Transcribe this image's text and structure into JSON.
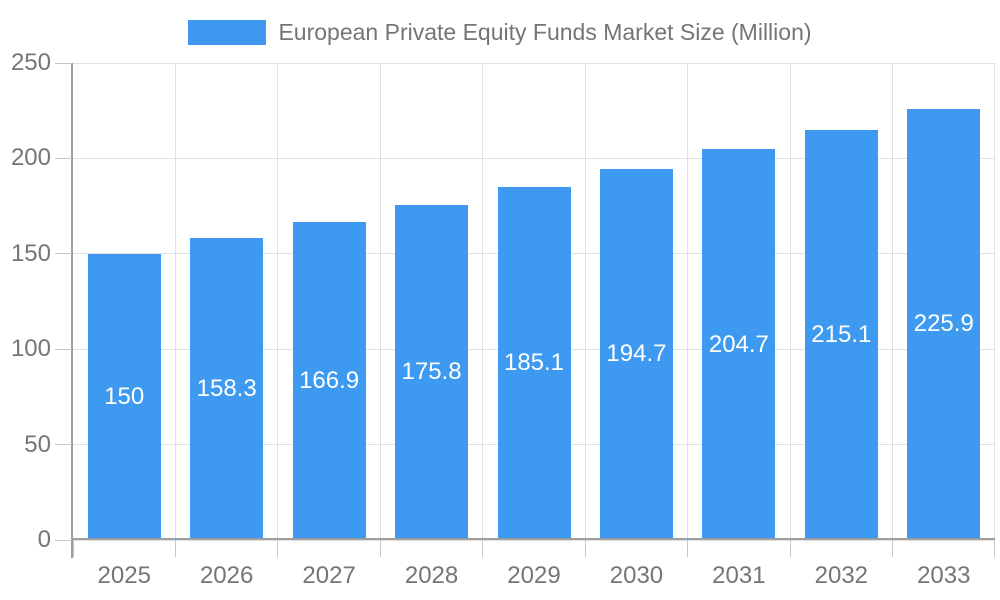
{
  "colors": {
    "bar": "#3d9af0",
    "axis_label": "#757575",
    "grid": "#e0e0e0",
    "axis_line": "#9e9e9e",
    "tick": "#c6c6c6",
    "value_label": "#ffffff",
    "background": "#ffffff"
  },
  "legend": {
    "label": "European Private Equity Funds Market Size (Million)"
  },
  "chart_data": {
    "type": "bar",
    "title": "European Private Equity Funds Market Size (Million)",
    "categories": [
      "2025",
      "2026",
      "2027",
      "2028",
      "2029",
      "2030",
      "2031",
      "2032",
      "2033"
    ],
    "values": [
      150,
      158.3,
      166.9,
      175.8,
      185.1,
      194.7,
      204.7,
      215.1,
      225.9
    ],
    "xlabel": "",
    "ylabel": "",
    "ylim": [
      0,
      250
    ],
    "yticks": [
      0,
      50,
      100,
      150,
      200,
      250
    ],
    "grid": true,
    "legend_position": "top",
    "value_labels_inside_bars": true
  }
}
